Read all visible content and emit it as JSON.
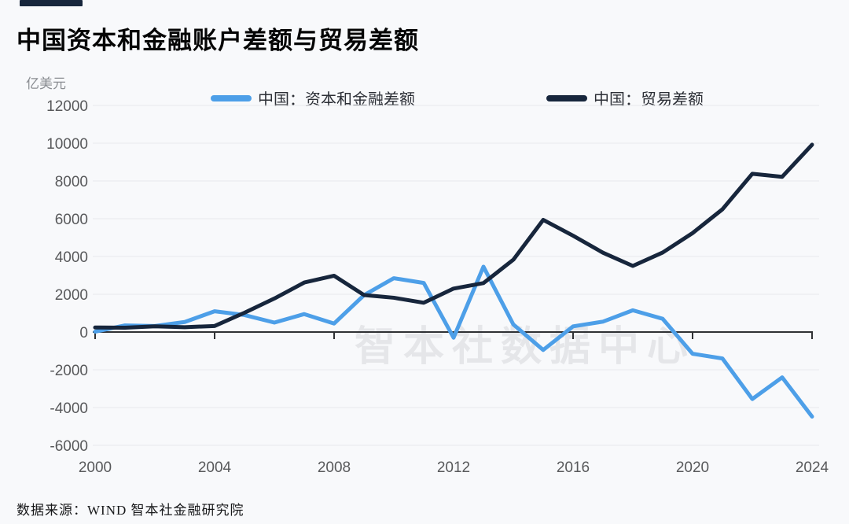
{
  "title": "中国资本和金融账户差额与贸易差额",
  "unit_label": "亿美元",
  "watermark": "智本社数据中心",
  "source": "数据来源：WIND 智本社金融研究院",
  "colors": {
    "accent_bar": "#17263C",
    "background": "#F8F9FB",
    "grid_line": "#E8E9EC",
    "zero_axis": "#2F3134",
    "axis_text": "#58595B",
    "capital_series": "#4D9FE8",
    "trade_series": "#17263C",
    "watermark_text": "#74777e"
  },
  "legend": [
    {
      "label": "中国：资本和金融差额",
      "color": "#4D9FE8"
    },
    {
      "label": "中国：贸易差额",
      "color": "#17263C"
    }
  ],
  "chart_data": {
    "type": "line",
    "title": "中国资本和金融账户差额与贸易差额",
    "ylabel": "亿美元",
    "ylim": [
      -6000,
      12000
    ],
    "ytick_interval": 2000,
    "grid": true,
    "legend_position": "top",
    "x": [
      2000,
      2001,
      2002,
      2003,
      2004,
      2005,
      2006,
      2007,
      2008,
      2009,
      2010,
      2011,
      2012,
      2013,
      2014,
      2015,
      2016,
      2017,
      2018,
      2019,
      2020,
      2021,
      2022,
      2023,
      2024
    ],
    "xticks": [
      2000,
      2004,
      2008,
      2012,
      2016,
      2020,
      2024
    ],
    "series": [
      {
        "name": "中国：资本和金融差额",
        "color": "#4D9FE8",
        "values": [
          20,
          350,
          320,
          530,
          1100,
          900,
          500,
          950,
          450,
          1950,
          2850,
          2600,
          -300,
          3460,
          400,
          -950,
          300,
          550,
          1150,
          700,
          -1150,
          -1400,
          -3550,
          -2400,
          -4480
        ]
      },
      {
        "name": "中国：贸易差额",
        "color": "#17263C",
        "values": [
          240,
          230,
          300,
          255,
          320,
          1020,
          1775,
          2620,
          2980,
          1960,
          1815,
          1550,
          2300,
          2590,
          3830,
          5940,
          5100,
          4200,
          3500,
          4210,
          5240,
          6500,
          8380,
          8220,
          9920
        ]
      }
    ]
  }
}
